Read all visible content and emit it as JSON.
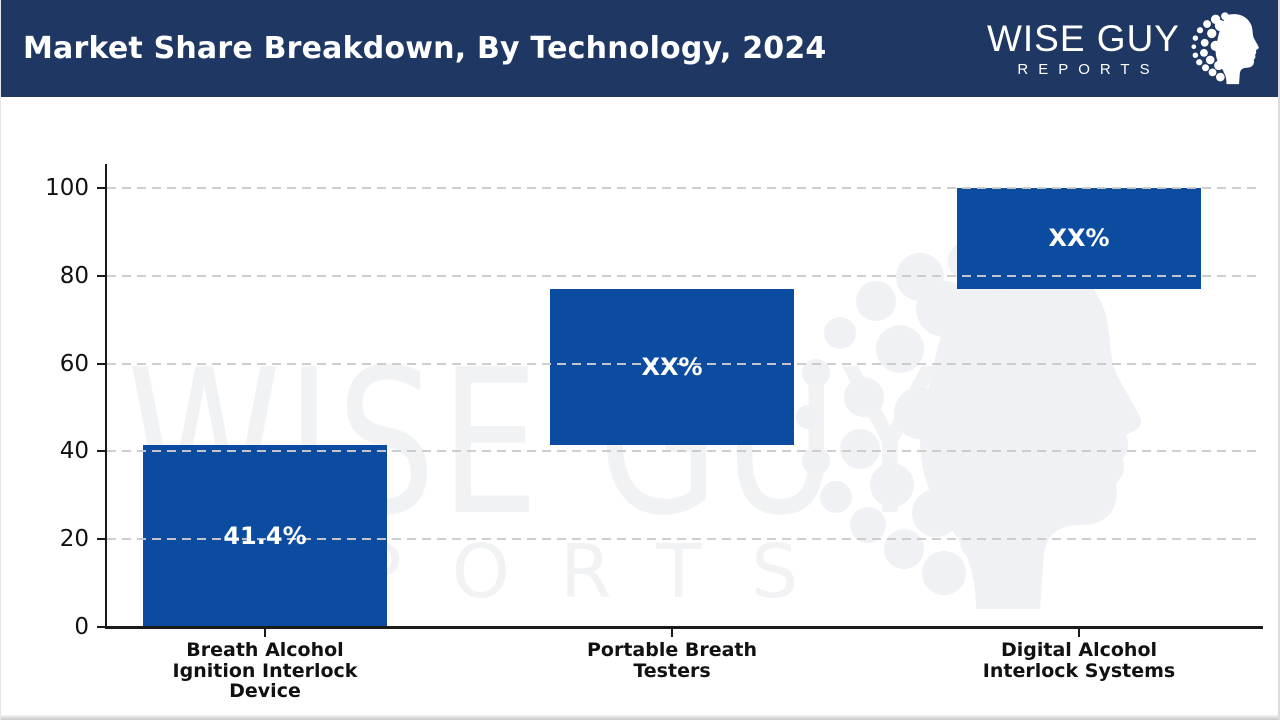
{
  "header": {
    "title": "Market Share Breakdown, By Technology, 2024",
    "logo": {
      "line1": "WISE GUY",
      "line2": "REPORTS",
      "face_icon": "dotted-head-profile"
    }
  },
  "watermark": {
    "text1": "WISE GUY",
    "text2": "REPORTS",
    "face_icon": "dotted-head-profile"
  },
  "colors": {
    "header_bg": "#1f3763",
    "bar_blue": "#0b4ba0",
    "grid_gray": "#cbcbcb",
    "axis_black": "#1a1a1a",
    "watermark_gray": "#f1f2f4",
    "bar_label_white": "#ffffff"
  },
  "chart_data": {
    "type": "bar",
    "subtype": "waterfall-stacked-segments",
    "title": "Market Share Breakdown, By Technology, 2024",
    "categories": [
      "Breath Alcohol Ignition Interlock Device",
      "Portable Breath Testers",
      "Digital Alcohol Interlock Systems"
    ],
    "category_lines": [
      [
        "Breath Alcohol",
        "Ignition Interlock",
        "Device"
      ],
      [
        "Portable Breath",
        "Testers"
      ],
      [
        "Digital Alcohol",
        "Interlock Systems"
      ]
    ],
    "segments": [
      {
        "category": "Breath Alcohol Ignition Interlock Device",
        "start": 0,
        "end": 41.4,
        "label": "41.4%"
      },
      {
        "category": "Portable Breath Testers",
        "start": 41.4,
        "end": 77,
        "label": "XX%"
      },
      {
        "category": "Digital Alcohol Interlock Systems",
        "start": 77,
        "end": 100,
        "label": "XX%"
      }
    ],
    "ylabel": "",
    "xlabel": "",
    "ylim": [
      0,
      100
    ],
    "yticks": [
      0,
      20,
      40,
      60,
      80,
      100
    ],
    "grid": "horizontal-dashed",
    "legend": "none"
  }
}
